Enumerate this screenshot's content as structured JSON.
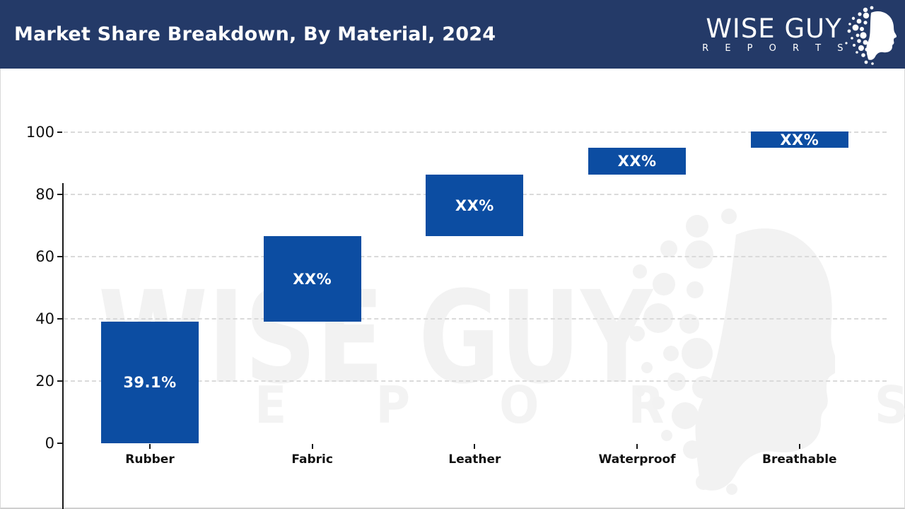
{
  "header": {
    "title": "Market Share Breakdown, By Material, 2024",
    "bg_color": "#243a68",
    "logo": {
      "line1": "WISE GUY",
      "line2": "R E P O R T S"
    }
  },
  "watermark": {
    "line1": "WISE GUY",
    "line2": "REPORTS"
  },
  "chart_data": {
    "type": "bar",
    "subtype": "waterfall",
    "title": "Market Share Breakdown, By Material, 2024",
    "categories": [
      "Rubber",
      "Fabric",
      "Leather",
      "Waterproof",
      "Breathable"
    ],
    "segments": [
      {
        "category": "Rubber",
        "start": 0,
        "end": 39.1,
        "label": "39.1%"
      },
      {
        "category": "Fabric",
        "start": 39.1,
        "end": 66.5,
        "label": "XX%"
      },
      {
        "category": "Leather",
        "start": 66.5,
        "end": 86.4,
        "label": "XX%"
      },
      {
        "category": "Waterproof",
        "start": 86.4,
        "end": 94.9,
        "label": "XX%"
      },
      {
        "category": "Breathable",
        "start": 94.9,
        "end": 100.2,
        "label": "XX%"
      }
    ],
    "yticks": [
      0,
      20,
      40,
      60,
      80,
      100
    ],
    "ylim": [
      0,
      105.7
    ],
    "xlabel": "",
    "ylabel": "",
    "grid": "horizontal-dashed",
    "legend": "none",
    "bar_color": "#0c4da2",
    "bar_label_color": "#ffffff",
    "axis_color": "#1a1a1a",
    "gridline_color": "#dadada"
  }
}
